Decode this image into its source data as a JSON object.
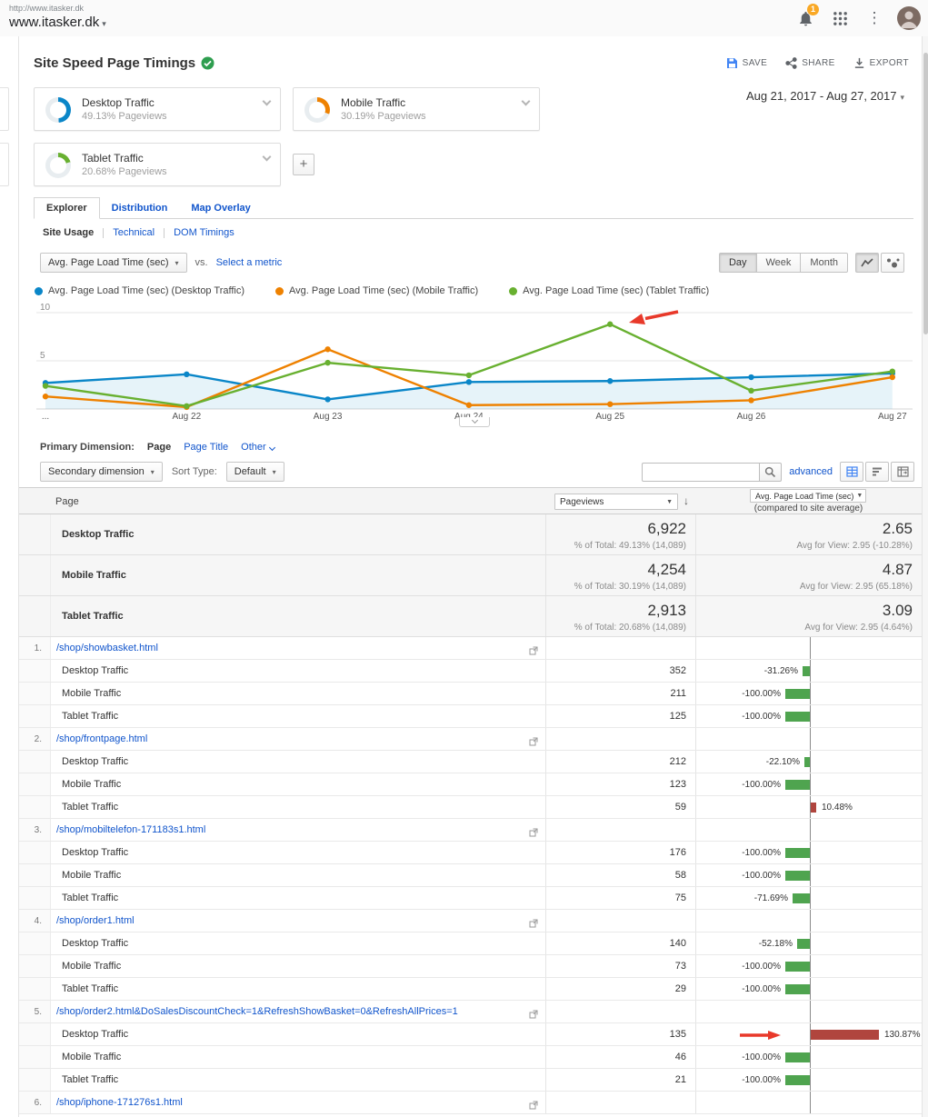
{
  "topbar": {
    "url": "http://www.itasker.dk",
    "site": "www.itasker.dk",
    "notification_count": "1"
  },
  "header": {
    "title": "Site Speed Page Timings",
    "save": "SAVE",
    "share": "SHARE",
    "export": "EXPORT"
  },
  "segments": [
    {
      "name": "Desktop Traffic",
      "sub": "49.13% Pageviews",
      "pct": 49.13,
      "color": "#0a86c8"
    },
    {
      "name": "Mobile Traffic",
      "sub": "30.19% Pageviews",
      "pct": 30.19,
      "color": "#ee8100"
    },
    {
      "name": "Tablet Traffic",
      "sub": "20.68% Pageviews",
      "pct": 20.68,
      "color": "#68b030"
    }
  ],
  "add_segment": "+",
  "date_range": "Aug 21, 2017 - Aug 27, 2017",
  "tabs": [
    "Explorer",
    "Distribution",
    "Map Overlay"
  ],
  "subtabs": [
    "Site Usage",
    "Technical",
    "DOM Timings"
  ],
  "metric_bar": {
    "metric": "Avg. Page Load Time (sec)",
    "vs": "vs.",
    "select_metric": "Select a metric",
    "granularity": [
      "Day",
      "Week",
      "Month"
    ]
  },
  "chart_data": {
    "type": "line",
    "x": [
      "Aug 21",
      "Aug 22",
      "Aug 23",
      "Aug 24",
      "Aug 25",
      "Aug 26",
      "Aug 27"
    ],
    "x_tick_labels": [
      "...",
      "Aug 22",
      "Aug 23",
      "Aug 24",
      "Aug 25",
      "Aug 26",
      "Aug 27"
    ],
    "ylim": [
      0,
      10
    ],
    "yticks": [
      5,
      10
    ],
    "series": [
      {
        "name": "Avg. Page Load Time (sec) (Desktop Traffic)",
        "color": "#0a86c8",
        "area": true,
        "values": [
          2.7,
          3.6,
          1.0,
          2.8,
          2.9,
          3.3,
          3.7
        ]
      },
      {
        "name": "Avg. Page Load Time (sec) (Mobile Traffic)",
        "color": "#ee8100",
        "values": [
          1.3,
          0.2,
          6.2,
          0.4,
          0.5,
          0.9,
          3.3
        ]
      },
      {
        "name": "Avg. Page Load Time (sec) (Tablet Traffic)",
        "color": "#68b030",
        "values": [
          2.4,
          0.3,
          4.8,
          3.5,
          8.8,
          1.9,
          3.9
        ]
      }
    ],
    "annotation": "red arrow pointing at Tablet Traffic peak on Aug 25"
  },
  "primary_dimension": {
    "label": "Primary Dimension:",
    "options": [
      "Page",
      "Page Title",
      "Other"
    ]
  },
  "toolbar": {
    "secondary_dimension": "Secondary dimension",
    "sort_type_label": "Sort Type:",
    "sort_type_value": "Default",
    "search_value": "",
    "advanced": "advanced"
  },
  "table": {
    "headers": {
      "page": "Page",
      "pageviews": "Pageviews",
      "metric": "Avg. Page Load Time (sec)",
      "metric_sub": "(compared to site average)"
    },
    "summary": [
      {
        "name": "Desktop Traffic",
        "pageviews": "6,922",
        "pageviews_sub": "% of Total: 49.13% (14,089)",
        "metric": "2.65",
        "metric_sub": "Avg for View: 2.95 (-10.28%)"
      },
      {
        "name": "Mobile Traffic",
        "pageviews": "4,254",
        "pageviews_sub": "% of Total: 30.19% (14,089)",
        "metric": "4.87",
        "metric_sub": "Avg for View: 2.95 (65.18%)"
      },
      {
        "name": "Tablet Traffic",
        "pageviews": "2,913",
        "pageviews_sub": "% of Total: 20.68% (14,089)",
        "metric": "3.09",
        "metric_sub": "Avg for View: 2.95 (4.64%)"
      }
    ],
    "rows": [
      {
        "index": "1.",
        "page": "/shop/showbasket.html",
        "subs": [
          {
            "name": "Desktop Traffic",
            "pageviews": "352",
            "delta_pct": -31.26,
            "delta_label": "-31.26%"
          },
          {
            "name": "Mobile Traffic",
            "pageviews": "211",
            "delta_pct": -100,
            "delta_label": "-100.00%"
          },
          {
            "name": "Tablet Traffic",
            "pageviews": "125",
            "delta_pct": -100,
            "delta_label": "-100.00%"
          }
        ]
      },
      {
        "index": "2.",
        "page": "/shop/frontpage.html",
        "subs": [
          {
            "name": "Desktop Traffic",
            "pageviews": "212",
            "delta_pct": -22.1,
            "delta_label": "-22.10%"
          },
          {
            "name": "Mobile Traffic",
            "pageviews": "123",
            "delta_pct": -100,
            "delta_label": "-100.00%"
          },
          {
            "name": "Tablet Traffic",
            "pageviews": "59",
            "delta_pct": 10.48,
            "delta_label": "10.48%"
          }
        ]
      },
      {
        "index": "3.",
        "page": "/shop/mobiltelefon-171183s1.html",
        "subs": [
          {
            "name": "Desktop Traffic",
            "pageviews": "176",
            "delta_pct": -100,
            "delta_label": "-100.00%"
          },
          {
            "name": "Mobile Traffic",
            "pageviews": "58",
            "delta_pct": -100,
            "delta_label": "-100.00%"
          },
          {
            "name": "Tablet Traffic",
            "pageviews": "75",
            "delta_pct": -71.69,
            "delta_label": "-71.69%"
          }
        ]
      },
      {
        "index": "4.",
        "page": "/shop/order1.html",
        "subs": [
          {
            "name": "Desktop Traffic",
            "pageviews": "140",
            "delta_pct": -52.18,
            "delta_label": "-52.18%"
          },
          {
            "name": "Mobile Traffic",
            "pageviews": "73",
            "delta_pct": -100,
            "delta_label": "-100.00%"
          },
          {
            "name": "Tablet Traffic",
            "pageviews": "29",
            "delta_pct": -100,
            "delta_label": "-100.00%"
          }
        ]
      },
      {
        "index": "5.",
        "page": "/shop/order2.html&DoSalesDiscountCheck=1&RefreshShowBasket=0&RefreshAllPrices=1",
        "subs": [
          {
            "name": "Desktop Traffic",
            "pageviews": "135",
            "delta_pct": 130.87,
            "delta_label": "130.87%",
            "arrow": true
          },
          {
            "name": "Mobile Traffic",
            "pageviews": "46",
            "delta_pct": -100,
            "delta_label": "-100.00%"
          },
          {
            "name": "Tablet Traffic",
            "pageviews": "21",
            "delta_pct": -100,
            "delta_label": "-100.00%"
          }
        ]
      },
      {
        "index": "6.",
        "page": "/shop/iphone-171276s1.html",
        "subs": []
      }
    ],
    "bar_colors": {
      "negative": "#4fa44f",
      "positive": "#b0453e"
    }
  }
}
